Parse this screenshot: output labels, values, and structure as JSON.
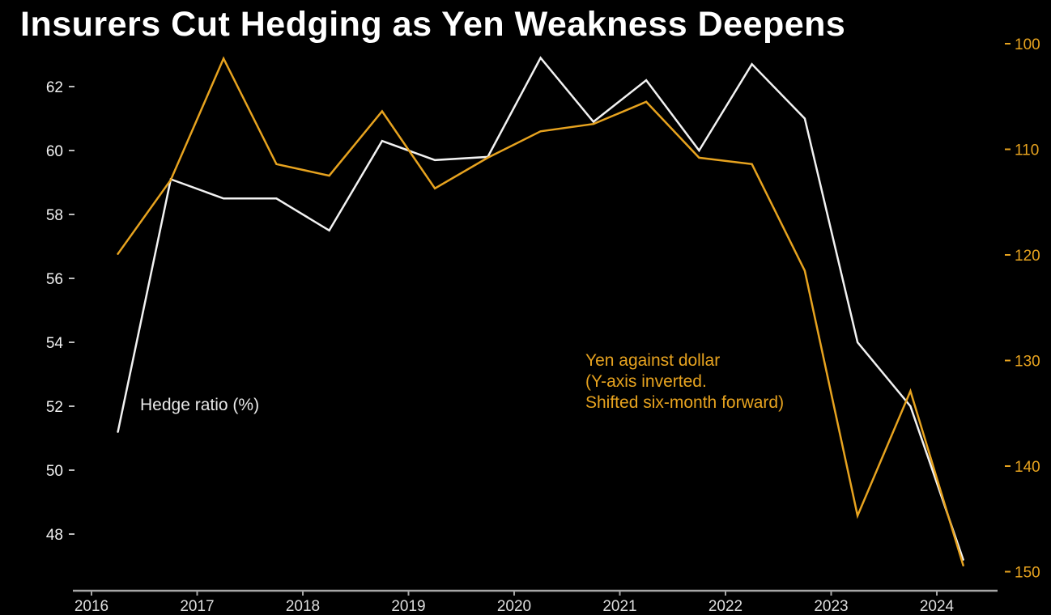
{
  "title": "Insurers Cut Hedging as Yen Weakness Deepens",
  "annotations": {
    "hedge_label": "Hedge ratio (%)",
    "yen_line1": "Yen against dollar",
    "yen_line2": "(Y-axis inverted.",
    "yen_line3": "Shifted six-month forward)"
  },
  "colors": {
    "background": "#000000",
    "hedge_line": "#f2f2f2",
    "yen_line": "#e7a31f",
    "axis_line": "#a6a6a6",
    "left_tick": "#bdbdbd",
    "right_tick": "#e7a31f"
  },
  "chart_data": {
    "type": "line",
    "title": "Insurers Cut Hedging as Yen Weakness Deepens",
    "x": [
      2016.25,
      2016.75,
      2017.25,
      2017.75,
      2018.25,
      2018.75,
      2019.25,
      2019.75,
      2020.25,
      2020.75,
      2021.25,
      2021.75,
      2022.25,
      2022.75,
      2023.25,
      2023.75,
      2024.25
    ],
    "series": [
      {
        "name": "Hedge ratio (%)",
        "axis": "left",
        "color": "#f2f2f2",
        "values": [
          51.2,
          59.1,
          58.5,
          58.5,
          57.5,
          60.3,
          59.7,
          59.8,
          62.9,
          60.9,
          62.2,
          60.0,
          62.7,
          61.0,
          54.0,
          52.0,
          47.2
        ]
      },
      {
        "name": "Yen against dollar (Y-axis inverted. Shifted six-month forward)",
        "axis": "right",
        "color": "#e7a31f",
        "values": [
          119.9,
          112.9,
          101.4,
          111.4,
          112.5,
          106.4,
          113.7,
          110.8,
          108.3,
          107.6,
          105.5,
          110.8,
          111.4,
          121.5,
          144.7,
          132.9,
          149.4
        ]
      }
    ],
    "left_axis": {
      "label": "Hedge ratio (%)",
      "ticks": [
        62,
        60,
        58,
        56,
        54,
        52,
        50,
        48
      ]
    },
    "right_axis": {
      "label": "Yen against dollar",
      "ticks": [
        100,
        110,
        120,
        130,
        140,
        150
      ],
      "inverted": true
    },
    "x_axis": {
      "ticks": [
        2016,
        2017,
        2018,
        2019,
        2020,
        2021,
        2022,
        2023,
        2024
      ]
    },
    "legend_position": "in-plot annotations",
    "grid": false
  }
}
